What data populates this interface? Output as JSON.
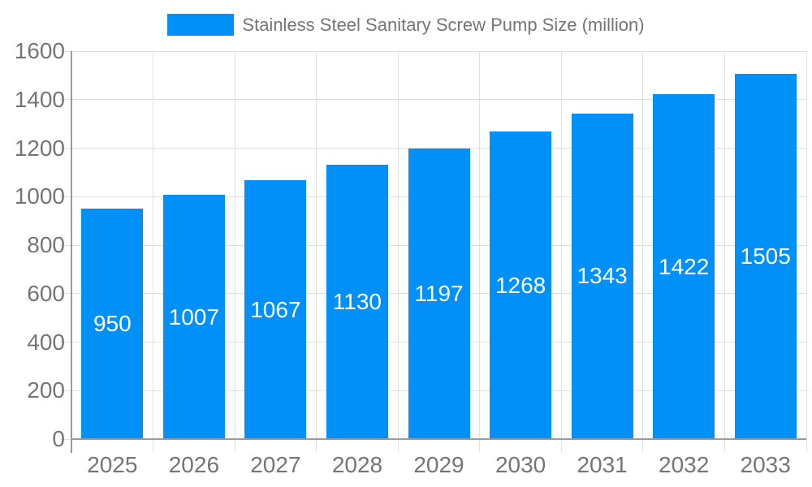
{
  "chart_data": {
    "type": "bar",
    "title": "Stainless Steel Sanitary Screw Pump Size (million)",
    "legend": {
      "position": "top",
      "entries": [
        "Stainless Steel Sanitary Screw Pump Size (million)"
      ]
    },
    "categories": [
      "2025",
      "2026",
      "2027",
      "2028",
      "2029",
      "2030",
      "2031",
      "2032",
      "2033"
    ],
    "series": [
      {
        "name": "Stainless Steel Sanitary Screw Pump Size (million)",
        "values": [
          950,
          1007,
          1067,
          1130,
          1197,
          1268,
          1343,
          1422,
          1505
        ]
      }
    ],
    "xlabel": "",
    "ylabel": "",
    "ylim": [
      0,
      1600
    ],
    "yticks": [
      0,
      200,
      400,
      600,
      800,
      1000,
      1200,
      1400,
      1600
    ],
    "grid": true,
    "value_labels": "inside-center",
    "colors": {
      "bar": "#0190f8",
      "value_label": "#ffffff",
      "gridline": "#e0e0e0",
      "axis": "#9a9a9a",
      "tick_text": "#757575",
      "legend_text": "#757575",
      "background": "#ffffff"
    }
  }
}
